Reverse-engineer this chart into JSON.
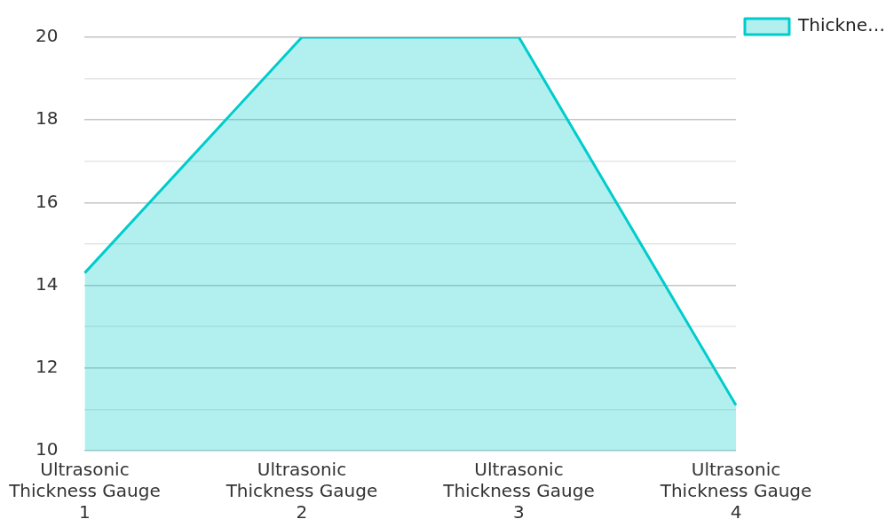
{
  "chart_data": {
    "type": "area",
    "categories": [
      "Ultrasonic Thickness Gauge 1",
      "Ultrasonic Thickness Gauge 2",
      "Ultrasonic Thickness Gauge 3",
      "Ultrasonic Thickness Gauge 4"
    ],
    "series": [
      {
        "name": "Thickne…",
        "color": "#00cccc",
        "values": [
          14.3,
          20,
          20,
          11.1
        ]
      }
    ],
    "ylim": [
      10,
      20
    ],
    "yticks": [
      10,
      {
        "value": 11,
        "label": null
      },
      12,
      {
        "value": 13,
        "label": null
      },
      14,
      {
        "value": 15,
        "label": null
      },
      16,
      {
        "value": 17,
        "label": null
      },
      18,
      {
        "value": 19,
        "label": null
      },
      20
    ],
    "grid": "y",
    "legend": "top right",
    "marker": "none"
  }
}
